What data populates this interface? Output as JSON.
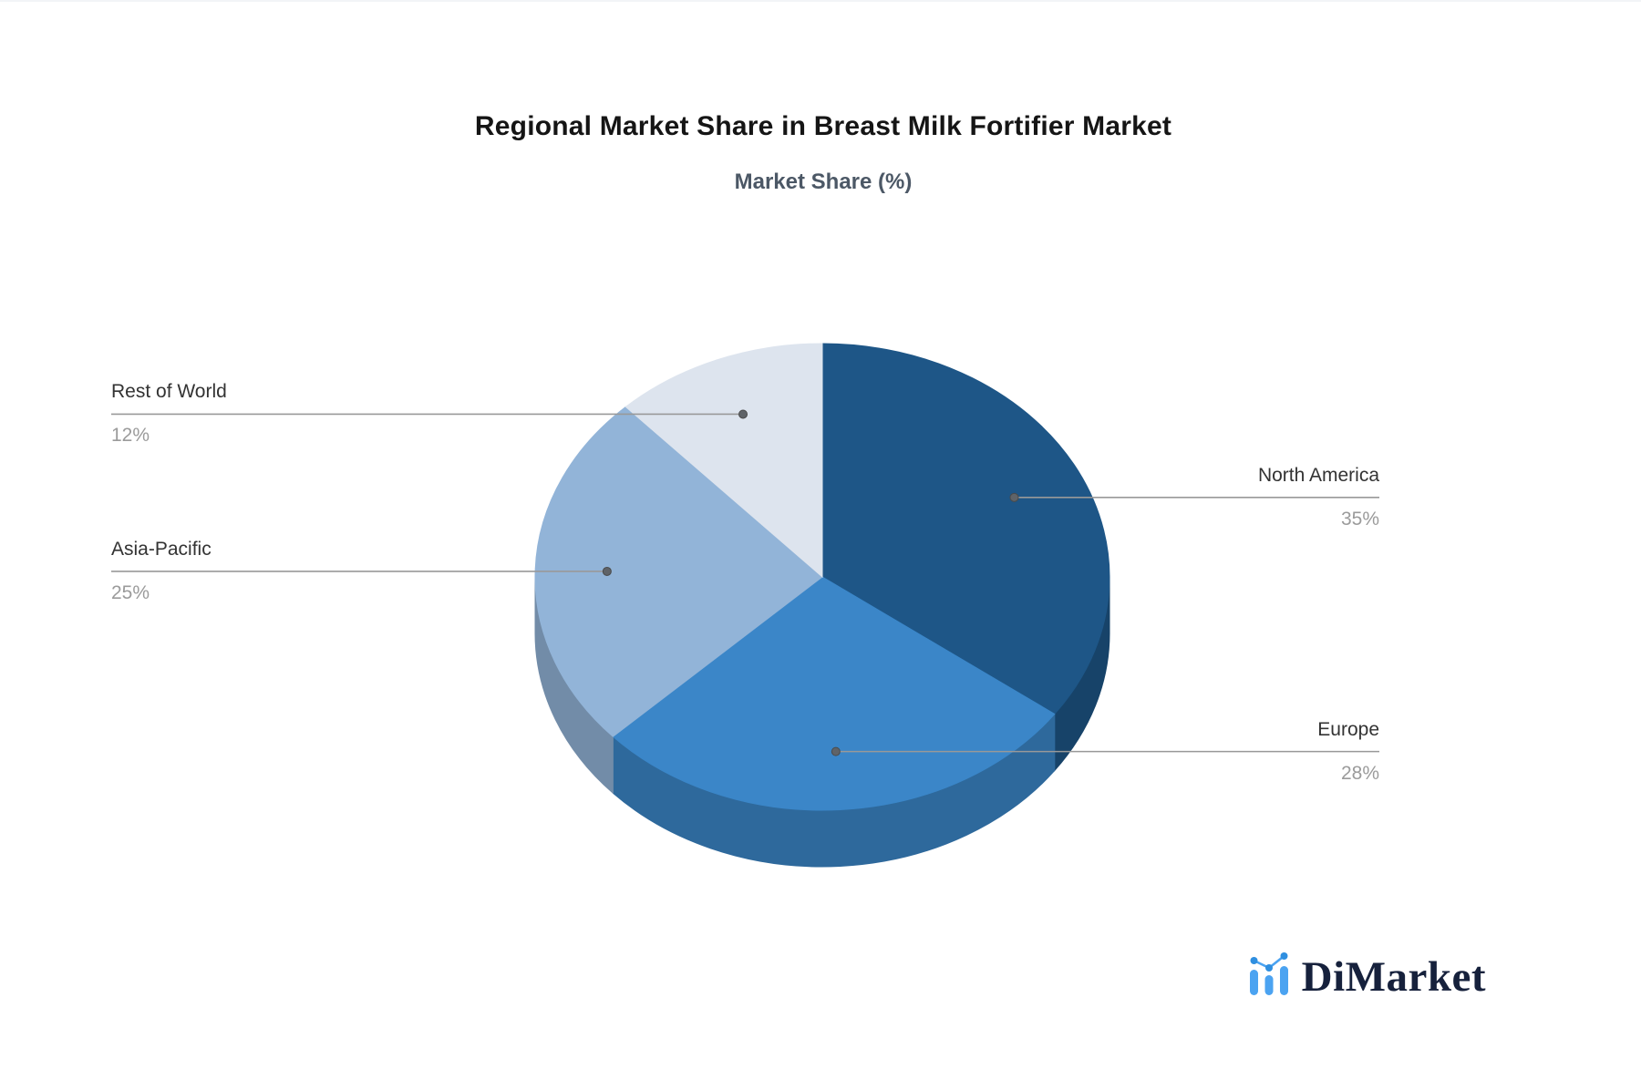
{
  "header": {
    "title": "Regional Market Share in Breast Milk Fortifier Market",
    "subtitle": "Market Share (%)"
  },
  "brand": {
    "name": "DiMarket",
    "icon": "bar-line-chart-icon",
    "icon_color": "#4ba3f1",
    "icon_accent_color": "#2f8fe0",
    "text_color": "#16213c"
  },
  "chart_data": {
    "type": "pie",
    "style": "3d",
    "title": "Regional Market Share in Breast Milk Fortifier Market",
    "subtitle": "Market Share (%)",
    "unit": "%",
    "start_angle_deg": 0,
    "direction": "clockwise",
    "legend": "none",
    "slices": [
      {
        "label": "North America",
        "value": 35,
        "display": "35%",
        "color": "#1e5687",
        "label_side": "right"
      },
      {
        "label": "Europe",
        "value": 28,
        "display": "28%",
        "color": "#3b86c8",
        "label_side": "right"
      },
      {
        "label": "Asia-Pacific",
        "value": 25,
        "display": "25%",
        "color": "#92b4d8",
        "label_side": "left"
      },
      {
        "label": "Rest of World",
        "value": 12,
        "display": "12%",
        "color": "#dde4ee",
        "label_side": "left"
      }
    ],
    "label_name_color": "#333333",
    "label_value_color": "#9b9b9b",
    "connector_color": "#999999",
    "connector_dot_color": "#5f6368",
    "depth_shade_factor": 0.78
  }
}
